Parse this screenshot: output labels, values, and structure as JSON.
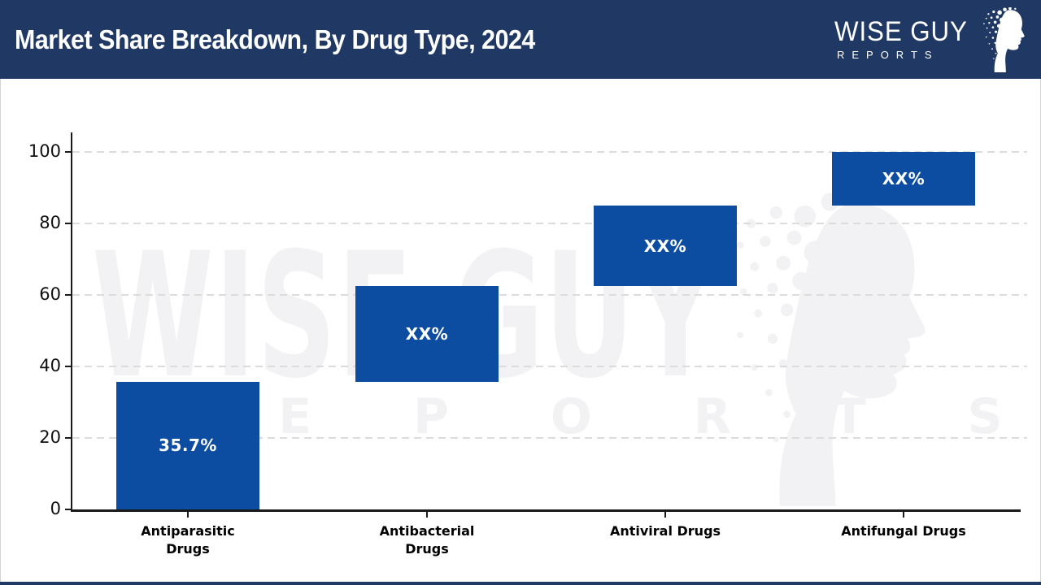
{
  "header": {
    "title": "Market Share Breakdown, By Drug Type, 2024"
  },
  "logo": {
    "line1": "WISE GUY",
    "line2": "REPORTS"
  },
  "watermark": {
    "line1": "WISE GUY",
    "line2": "R E P O R T S"
  },
  "chart_data": {
    "type": "bar",
    "subtype": "waterfall",
    "title": "Market Share Breakdown, By Drug Type, 2024",
    "xlabel": "",
    "ylabel": "",
    "ylim": [
      0,
      105
    ],
    "yticks": [
      0,
      20,
      40,
      60,
      80,
      100
    ],
    "grid": "horizontal-dashed",
    "legend": "none",
    "categories": [
      "Antiparasitic\nDrugs",
      "Antibacterial\nDrugs",
      "Antiviral Drugs",
      "Antifungal Drugs"
    ],
    "segments": [
      {
        "category": "Antiparasitic Drugs",
        "start": 0,
        "end": 35.7,
        "label": "35.7%"
      },
      {
        "category": "Antibacterial Drugs",
        "start": 35.7,
        "end": 62.5,
        "label": "XX%"
      },
      {
        "category": "Antiviral Drugs",
        "start": 62.5,
        "end": 85,
        "label": "XX%"
      },
      {
        "category": "Antifungal Drugs",
        "start": 85,
        "end": 100,
        "label": "XX%"
      }
    ]
  },
  "colors": {
    "header_background": "#1f3864",
    "bar": "#0c4da2",
    "bar_label": "#ffffff",
    "grid": "#dcdcdc",
    "axis": "#1a1a1a",
    "watermark": "#f2f2f4"
  }
}
